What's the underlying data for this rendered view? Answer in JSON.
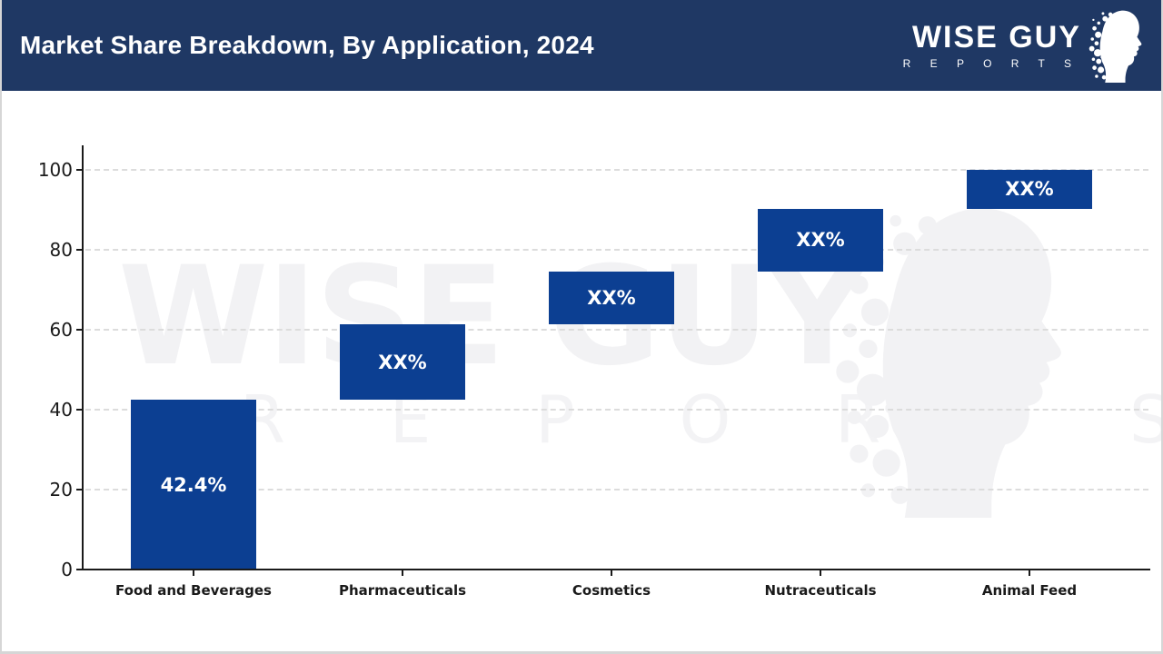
{
  "header": {
    "title": "Market Share Breakdown, By Application, 2024",
    "bg_color": "#1f3864",
    "logo": {
      "line1": "WISE GUY",
      "line2": "R E P O R T S"
    }
  },
  "watermark": {
    "line1": "WISE GUY",
    "line2": "R E P O R T S"
  },
  "chart_data": {
    "type": "bar",
    "subtype": "waterfall",
    "title": "Market Share Breakdown, By Application, 2024",
    "categories": [
      "Food and Beverages",
      "Pharmaceuticals",
      "Cosmetics",
      "Nutraceuticals",
      "Animal Feed"
    ],
    "bars": [
      {
        "category": "Food and Beverages",
        "from": 0,
        "to": 42.4,
        "label": "42.4%"
      },
      {
        "category": "Pharmaceuticals",
        "from": 42.4,
        "to": 61.4,
        "label": "XX%"
      },
      {
        "category": "Cosmetics",
        "from": 61.4,
        "to": 74.6,
        "label": "XX%"
      },
      {
        "category": "Nutraceuticals",
        "from": 74.6,
        "to": 90.3,
        "label": "XX%"
      },
      {
        "category": "Animal Feed",
        "from": 90.3,
        "to": 100,
        "label": "XX%"
      }
    ],
    "yticks": [
      0,
      20,
      40,
      60,
      80,
      100
    ],
    "ylim": [
      0,
      105
    ],
    "xlabel": "",
    "ylabel": "",
    "legend": "none",
    "grid": "horizontal-dashed",
    "bar_color": "#0c3f92",
    "bar_label_color": "#ffffff",
    "grid_color": "#dcdcdc",
    "axis_color": "#1a1a1a"
  }
}
